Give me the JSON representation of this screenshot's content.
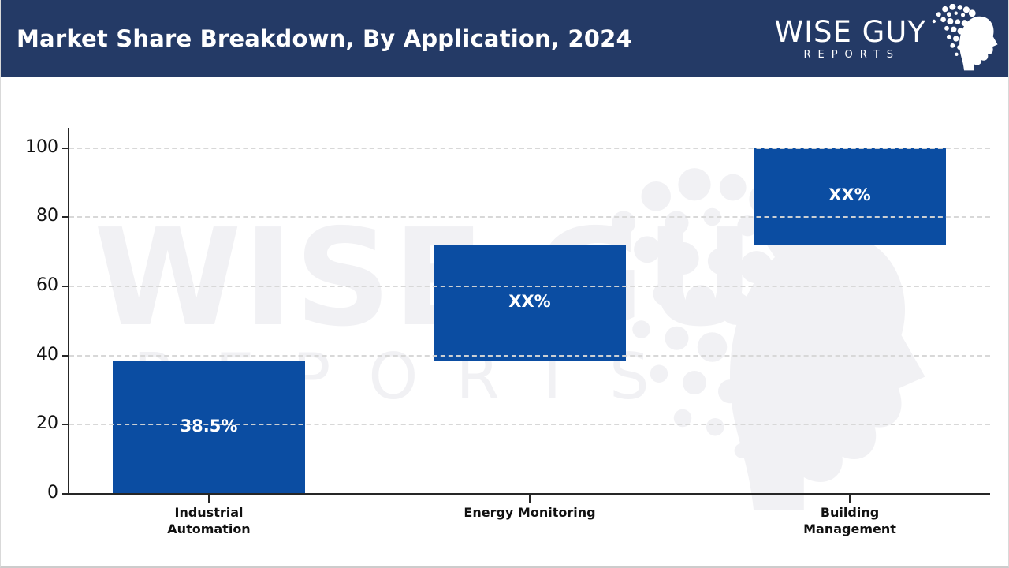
{
  "header": {
    "title": "Market Share Breakdown, By Application, 2024",
    "logo": {
      "wordmark": "WISE GUY",
      "sub": "REPORTS"
    }
  },
  "watermark": {
    "wordmark": "WISE GUY",
    "sub": "REPORTS"
  },
  "colors": {
    "header_bg": "#243A66",
    "bar": "#0B4DA2",
    "grid": "#D6D6D6",
    "axis": "#262626",
    "watermark": "#F1F1F4"
  },
  "chart_data": {
    "type": "bar",
    "variant": "floating-segment-waterfall",
    "title": "Market Share Breakdown, By Application, 2024",
    "categories": [
      "Industrial Automation",
      "Energy Monitoring",
      "Building Management"
    ],
    "category_label_lines": [
      [
        "Industrial",
        "Automation"
      ],
      [
        "Energy Monitoring"
      ],
      [
        "Building",
        "Management"
      ]
    ],
    "bars": [
      {
        "category": "Industrial Automation",
        "start": 0,
        "end": 38.5,
        "label": "38.5%"
      },
      {
        "category": "Energy Monitoring",
        "start": 38.5,
        "end": 72,
        "label": "XX%"
      },
      {
        "category": "Building Management",
        "start": 72,
        "end": 100,
        "label": "XX%"
      }
    ],
    "xlabel": "",
    "ylabel": "",
    "yticks": [
      0,
      20,
      40,
      60,
      80,
      100
    ],
    "ylim": [
      0,
      105
    ],
    "bar_color": "#0B4DA2",
    "grid": "horizontal-dashed-over-bars",
    "legend": "none"
  }
}
